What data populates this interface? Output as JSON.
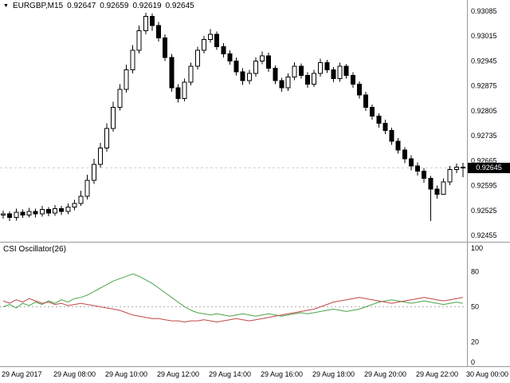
{
  "header": {
    "symbol_period": "EURGBP,M15",
    "open": "0.92647",
    "high": "0.92659",
    "low": "0.92619",
    "close": "0.92645"
  },
  "icons": {
    "dropdown": "▼"
  },
  "price_axis": {
    "labels": [
      0.93085,
      0.93015,
      0.92945,
      0.92875,
      0.92805,
      0.92735,
      0.92665,
      0.92595,
      0.92525,
      0.92455
    ],
    "current_price": "0.92645"
  },
  "indicator": {
    "name": "CSI Oscillator(26)",
    "axis_labels": [
      100,
      80,
      50,
      20,
      0
    ],
    "level_line": 50
  },
  "time_axis": {
    "labels": [
      "29 Aug 2017",
      "29 Aug 08:00",
      "29 Aug 10:00",
      "29 Aug 12:00",
      "29 Aug 14:00",
      "29 Aug 16:00",
      "29 Aug 18:00",
      "29 Aug 20:00",
      "29 Aug 22:00",
      "30 Aug 00:00"
    ]
  },
  "colors": {
    "bull_candle": "#ffffff",
    "bear_candle": "#000000",
    "candle_outline": "#000000",
    "green_line": "#4aa44a",
    "red_line": "#c04848",
    "separator": "#999999",
    "level_line": "#b0b0b0",
    "bid_line": "#cccccc",
    "badge_bg": "#000000",
    "badge_text": "#ffffff"
  },
  "chart_data": {
    "type": "candlestick",
    "symbol": "EURGBP",
    "timeframe": "M15",
    "title": "EURGBP,M15",
    "price_axis_range": [
      0.92455,
      0.93085
    ],
    "ohlc": {
      "open": [
        0.92512,
        0.92515,
        0.92505,
        0.9252,
        0.92512,
        0.92522,
        0.92515,
        0.92528,
        0.92518,
        0.9253,
        0.92522,
        0.92535,
        0.92545,
        0.92565,
        0.9261,
        0.92655,
        0.927,
        0.92755,
        0.92815,
        0.92865,
        0.9292,
        0.92975,
        0.9303,
        0.9307,
        0.93045,
        0.9301,
        0.92955,
        0.9287,
        0.9284,
        0.92885,
        0.9293,
        0.92975,
        0.93005,
        0.9302,
        0.92985,
        0.92965,
        0.92945,
        0.92915,
        0.9289,
        0.9291,
        0.92945,
        0.9296,
        0.92925,
        0.9289,
        0.9287,
        0.929,
        0.9293,
        0.92905,
        0.9288,
        0.9291,
        0.9294,
        0.9292,
        0.92895,
        0.9293,
        0.92905,
        0.9288,
        0.9285,
        0.92815,
        0.9279,
        0.9277,
        0.9275,
        0.9272,
        0.92695,
        0.9267,
        0.9265,
        0.92635,
        0.92615,
        0.92585,
        0.9257,
        0.92605,
        0.9264,
        0.92647
      ],
      "high": [
        0.92525,
        0.92522,
        0.9253,
        0.92528,
        0.92532,
        0.9253,
        0.92538,
        0.92535,
        0.9254,
        0.92538,
        0.92545,
        0.92555,
        0.9258,
        0.92625,
        0.9267,
        0.92715,
        0.9277,
        0.9283,
        0.9288,
        0.92935,
        0.9299,
        0.93045,
        0.9308,
        0.93078,
        0.93055,
        0.9302,
        0.92965,
        0.9288,
        0.92895,
        0.9294,
        0.92985,
        0.93015,
        0.93035,
        0.93028,
        0.92995,
        0.92975,
        0.92955,
        0.92925,
        0.9292,
        0.92955,
        0.92972,
        0.92968,
        0.92933,
        0.92898,
        0.9291,
        0.92942,
        0.92938,
        0.92913,
        0.9292,
        0.92952,
        0.92948,
        0.92928,
        0.9294,
        0.92936,
        0.92913,
        0.92888,
        0.92858,
        0.92823,
        0.92798,
        0.9278,
        0.92758,
        0.92728,
        0.92703,
        0.9268,
        0.9266,
        0.92645,
        0.92622,
        0.92595,
        0.92615,
        0.9265,
        0.92657,
        0.92659
      ],
      "low": [
        0.92502,
        0.92495,
        0.92497,
        0.92504,
        0.92505,
        0.92506,
        0.92508,
        0.92509,
        0.9251,
        0.92512,
        0.92514,
        0.92526,
        0.92538,
        0.92556,
        0.926,
        0.92646,
        0.9269,
        0.92746,
        0.92806,
        0.92856,
        0.9291,
        0.92966,
        0.9302,
        0.9303,
        0.93,
        0.92945,
        0.92858,
        0.92828,
        0.92832,
        0.92876,
        0.92921,
        0.92966,
        0.92996,
        0.92976,
        0.92955,
        0.92935,
        0.92905,
        0.92878,
        0.9288,
        0.92901,
        0.92936,
        0.92915,
        0.9288,
        0.92858,
        0.92861,
        0.92891,
        0.92896,
        0.9287,
        0.92872,
        0.92901,
        0.92911,
        0.92885,
        0.92887,
        0.92896,
        0.9287,
        0.9284,
        0.92805,
        0.9278,
        0.92758,
        0.9274,
        0.9271,
        0.92685,
        0.92658,
        0.92638,
        0.92623,
        0.92603,
        0.92495,
        0.92558,
        0.92576,
        0.92596,
        0.9263,
        0.92619
      ],
      "close": [
        0.92515,
        0.92505,
        0.9252,
        0.92512,
        0.92522,
        0.92515,
        0.92528,
        0.92518,
        0.9253,
        0.92522,
        0.92535,
        0.92545,
        0.92565,
        0.9261,
        0.92655,
        0.927,
        0.92755,
        0.92815,
        0.92865,
        0.9292,
        0.92975,
        0.9303,
        0.9307,
        0.93045,
        0.9301,
        0.92955,
        0.9287,
        0.9284,
        0.92885,
        0.9293,
        0.92975,
        0.93005,
        0.9302,
        0.92985,
        0.92965,
        0.92945,
        0.92915,
        0.9289,
        0.9291,
        0.92945,
        0.9296,
        0.92925,
        0.9289,
        0.9287,
        0.929,
        0.9293,
        0.92905,
        0.9288,
        0.9291,
        0.9294,
        0.9292,
        0.92895,
        0.9293,
        0.92905,
        0.9288,
        0.9285,
        0.92815,
        0.9279,
        0.9277,
        0.9275,
        0.9272,
        0.92695,
        0.9267,
        0.9265,
        0.92635,
        0.92615,
        0.92585,
        0.9257,
        0.92605,
        0.9264,
        0.92647,
        0.92645
      ]
    },
    "oscillator": {
      "name": "CSI Oscillator(26)",
      "range": [
        0,
        100
      ],
      "level_lines": [
        50
      ],
      "series": [
        {
          "name": "green",
          "color": "#4aa44a",
          "values": [
            50,
            52,
            49,
            53,
            51,
            54,
            52,
            55,
            53,
            56,
            54,
            57,
            58,
            60,
            63,
            66,
            69,
            72,
            74,
            76,
            78,
            76,
            73,
            70,
            66,
            62,
            58,
            54,
            50,
            47,
            45,
            44,
            43,
            44,
            43,
            42,
            43,
            44,
            43,
            42,
            43,
            44,
            43,
            42,
            43,
            44,
            45,
            44,
            45,
            46,
            47,
            48,
            47,
            46,
            47,
            48,
            50,
            52,
            54,
            55,
            56,
            55,
            54,
            53,
            54,
            55,
            54,
            53,
            52,
            53,
            54,
            53
          ]
        },
        {
          "name": "red",
          "color": "#c04848",
          "values": [
            55,
            53,
            56,
            54,
            57,
            55,
            53,
            54,
            52,
            53,
            51,
            52,
            53,
            52,
            51,
            50,
            49,
            48,
            47,
            45,
            43,
            42,
            41,
            40,
            40,
            39,
            38,
            38,
            37,
            38,
            38,
            39,
            38,
            37,
            38,
            39,
            40,
            39,
            38,
            39,
            40,
            41,
            42,
            43,
            44,
            45,
            46,
            47,
            48,
            50,
            52,
            54,
            55,
            56,
            57,
            58,
            57,
            56,
            55,
            54,
            53,
            54,
            55,
            56,
            57,
            58,
            57,
            56,
            55,
            56,
            57,
            58
          ]
        }
      ]
    }
  }
}
